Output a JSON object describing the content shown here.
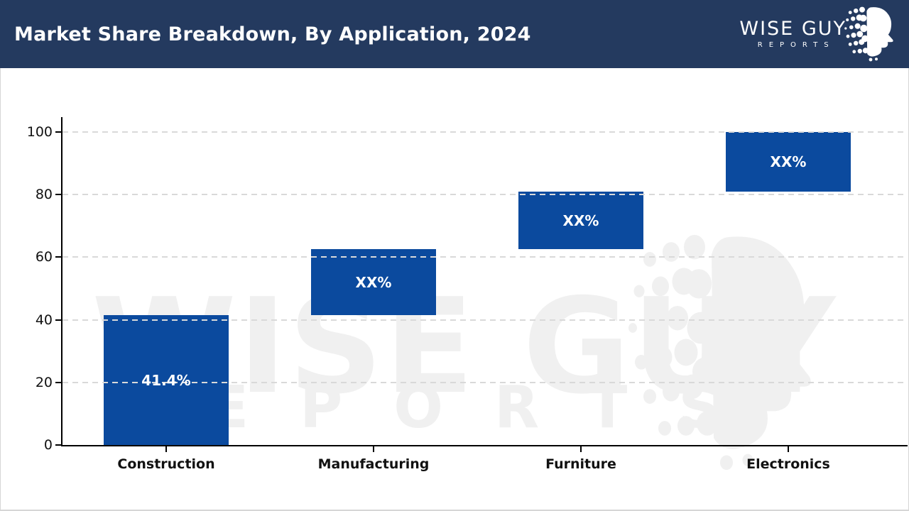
{
  "header": {
    "title": "Market Share Breakdown, By Application, 2024",
    "logo": {
      "wordmark": "WISE GUY",
      "subtext": "REPORTS"
    }
  },
  "watermark": {
    "line1": "WISE GUY",
    "line2": "REPORTS"
  },
  "colors": {
    "header_bg": "#243a5f",
    "bar": "#0b4a9e",
    "bar_label": "#ffffff",
    "grid": "#d9d9d9",
    "axis": "#000000",
    "watermark": "#f0f0f0",
    "panel_border": "#d6d6d6"
  },
  "chart_data": {
    "type": "bar",
    "subtype": "waterfall",
    "title": "Market Share Breakdown, By Application, 2024",
    "categories": [
      "Construction",
      "Manufacturing",
      "Furniture",
      "Electronics"
    ],
    "series": [
      {
        "name": "Market share (%)",
        "segments": [
          {
            "category": "Construction",
            "start": 0,
            "end": 41.4,
            "value": 41.4,
            "label": "41.4%"
          },
          {
            "category": "Manufacturing",
            "start": 41.4,
            "end": 62.5,
            "value": 21.1,
            "label": "XX%"
          },
          {
            "category": "Furniture",
            "start": 62.5,
            "end": 81.0,
            "value": 18.5,
            "label": "XX%"
          },
          {
            "category": "Electronics",
            "start": 81.0,
            "end": 100.0,
            "value": 19.0,
            "label": "XX%"
          }
        ]
      }
    ],
    "xlabel": "",
    "ylabel": "",
    "ylim": [
      0,
      100
    ],
    "yticks": [
      0,
      20,
      40,
      60,
      80,
      100
    ],
    "grid": "horizontal-dashed",
    "legend": "none"
  }
}
